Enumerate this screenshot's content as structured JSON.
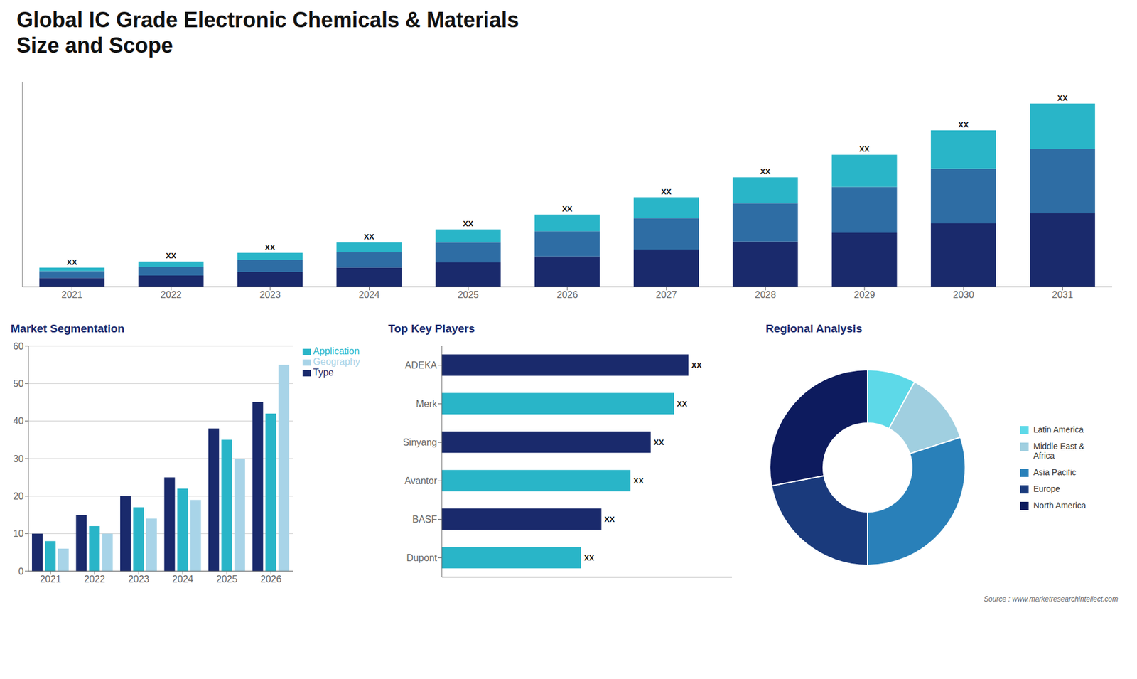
{
  "chart_data": [
    {
      "type": "bar",
      "title": "Global IC Grade Electronic Chemicals & Materials\nSize and Scope",
      "categories": [
        "2021",
        "2022",
        "2023",
        "2024",
        "2025",
        "2026",
        "2027",
        "2028",
        "2029",
        "2030",
        "2031"
      ],
      "stacked": true,
      "series": [
        {
          "color": "#1a2a6c",
          "values": [
            1,
            1.3,
            1.7,
            2.2,
            2.8,
            3.5,
            4.3,
            5.2,
            6.2,
            7.3,
            8.5
          ]
        },
        {
          "color": "#2e6da4",
          "values": [
            0.8,
            1.0,
            1.4,
            1.8,
            2.3,
            2.9,
            3.6,
            4.4,
            5.3,
            6.3,
            7.4
          ]
        },
        {
          "color": "#29b5c8",
          "values": [
            0.4,
            0.6,
            0.8,
            1.1,
            1.5,
            1.9,
            2.4,
            3.0,
            3.7,
            4.4,
            5.2
          ]
        }
      ],
      "value_labels": [
        "XX",
        "XX",
        "XX",
        "XX",
        "XX",
        "XX",
        "XX",
        "XX",
        "XX",
        "XX",
        "XX"
      ],
      "ylim": [
        0,
        23.6
      ],
      "tick_labels": "x",
      "grid": false,
      "annotations": [
        "Source : www.marketresearchintellect.com"
      ]
    },
    {
      "type": "bar",
      "title": "Market Segmentation",
      "categories": [
        "2021",
        "2022",
        "2023",
        "2024",
        "2025",
        "2026"
      ],
      "series": [
        {
          "name": "Type",
          "color": "#1a2a6c",
          "values": [
            10,
            15,
            20,
            25,
            38,
            45
          ]
        },
        {
          "name": "Application",
          "color": "#29b5c8",
          "values": [
            8,
            12,
            17,
            22,
            35,
            42
          ]
        },
        {
          "name": "Geography",
          "color": "#a8d4e8",
          "values": [
            6,
            10,
            14,
            19,
            30,
            55
          ]
        }
      ],
      "ylim": [
        0,
        60
      ],
      "yticks": [
        0,
        10,
        20,
        30,
        40,
        50,
        60
      ],
      "grid": true,
      "legend": "right"
    },
    {
      "type": "bar",
      "title": "Top Key Players",
      "orientation": "horizontal",
      "categories": [
        "ADEKA",
        "Merk",
        "Sinyang",
        "Avantor",
        "BASF",
        "Dupont"
      ],
      "values": [
        85,
        80,
        72,
        65,
        55,
        48
      ],
      "value_labels": [
        "XX",
        "XX",
        "XX",
        "XX",
        "XX",
        "XX"
      ],
      "colors": [
        "#1a2a6c",
        "#29b5c8",
        "#1a2a6c",
        "#29b5c8",
        "#1a2a6c",
        "#29b5c8"
      ],
      "xlim": [
        0,
        100
      ],
      "tick_labels": "y",
      "grid": false
    },
    {
      "type": "donut",
      "title": "Regional Analysis",
      "categories": [
        "Latin America",
        "Middle East &\nAfrica",
        "Asia Pacific",
        "Europe",
        "North America"
      ],
      "values": [
        8,
        12,
        30,
        22,
        28
      ],
      "colors": [
        "#5dd9e8",
        "#a0cfe0",
        "#2980b9",
        "#1a3a7c",
        "#0d1b5e"
      ],
      "legend": "right"
    }
  ]
}
